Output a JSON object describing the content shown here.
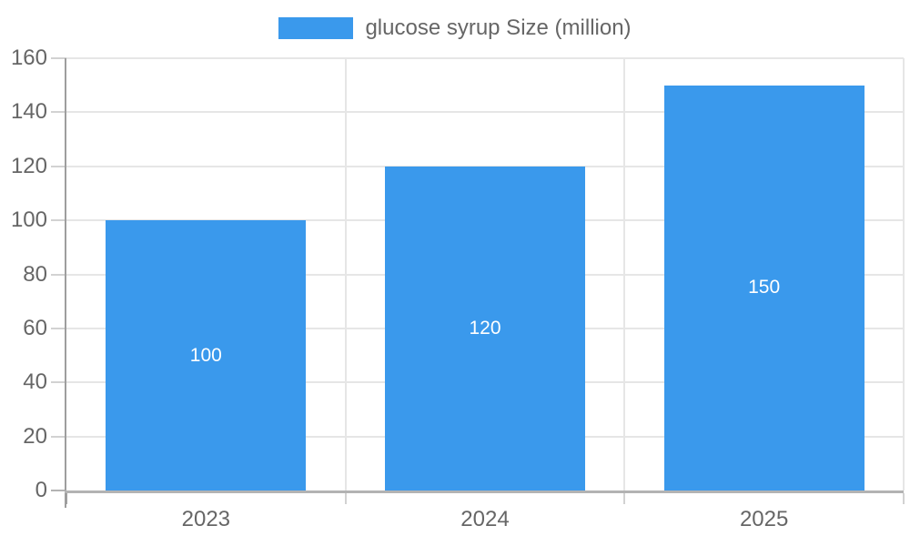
{
  "legend": {
    "label": "glucose syrup Size (million)"
  },
  "colors": {
    "bar": "#3a99ec",
    "grid": "#e6e6e6",
    "y_axis_line": "#9e9e9e",
    "x_axis_line": "#b3b3b3",
    "tick_mark": "#d2d2d2",
    "text": "#666666",
    "bar_label_text": "#ffffff",
    "background": "#ffffff"
  },
  "chart_data": {
    "type": "bar",
    "title": "glucose syrup Size (million)",
    "series": [
      {
        "name": "glucose syrup Size (million)",
        "values": [
          100,
          120,
          150
        ],
        "labels": [
          "100",
          "120",
          "150"
        ]
      }
    ],
    "categories": [
      "2023",
      "2024",
      "2025"
    ],
    "xlabel": "",
    "ylabel": "",
    "ylim": [
      0,
      160
    ],
    "ytick_step": 20,
    "yticks": [
      "0",
      "20",
      "40",
      "60",
      "80",
      "100",
      "120",
      "140",
      "160"
    ],
    "grid": true,
    "legend_position": "top"
  }
}
